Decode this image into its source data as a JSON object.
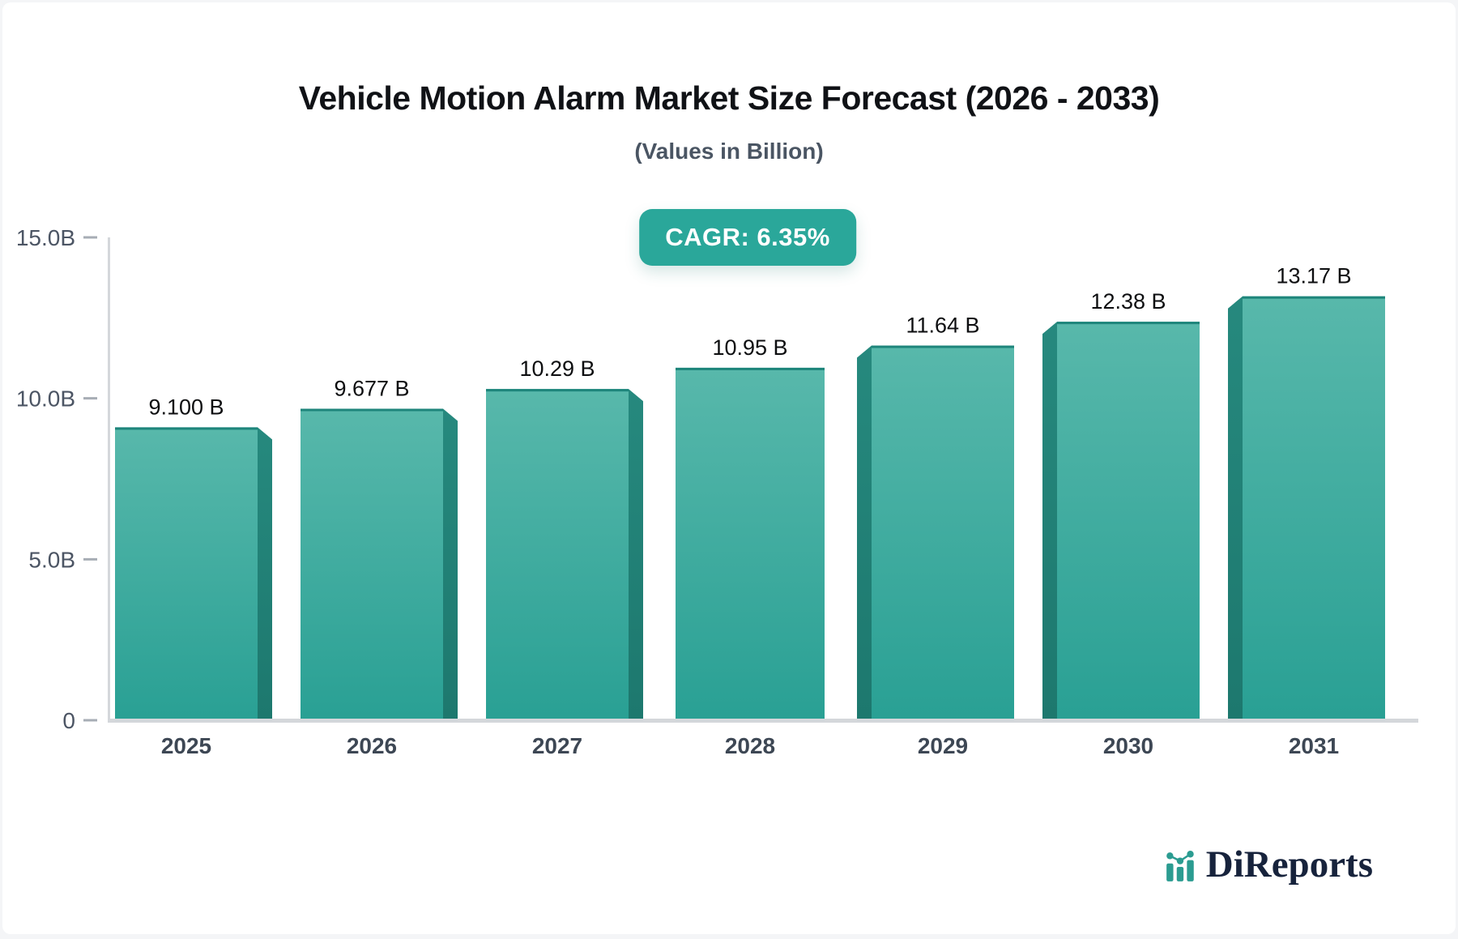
{
  "header": {
    "title": "Vehicle Motion Alarm Market Size Forecast (2026 - 2033)",
    "subtitle": "(Values in Billion)"
  },
  "badge": {
    "label": "CAGR: 6.35%",
    "background_color": "#2aa79a",
    "text_color": "#ffffff"
  },
  "footer": {
    "logo_text": "DiReports"
  },
  "chart_data": {
    "type": "bar",
    "title": "Vehicle Motion Alarm Market Size Forecast (2026 - 2033)",
    "subtitle": "(Values in Billion)",
    "annotation": "CAGR: 6.35%",
    "categories": [
      "2025",
      "2026",
      "2027",
      "2028",
      "2029",
      "2030",
      "2031"
    ],
    "values": [
      9.1,
      9.677,
      10.29,
      10.95,
      11.64,
      12.38,
      13.17
    ],
    "value_labels": [
      "9.100 B",
      "9.677 B",
      "10.29 B",
      "10.95 B",
      "11.64 B",
      "12.38 B",
      "13.17 B"
    ],
    "unit": "Billion",
    "xlabel": "",
    "ylabel": "",
    "ylim": [
      0,
      15
    ],
    "yticks": [
      {
        "value": 0,
        "label": "0"
      },
      {
        "value": 5,
        "label": "5.0B"
      },
      {
        "value": 10,
        "label": "10.0B"
      },
      {
        "value": 15,
        "label": "15.0B"
      }
    ],
    "grid": false,
    "legend": "none",
    "style": {
      "bar_face_top_color": "#58b8ab",
      "bar_face_bottom_color": "#29a094",
      "bar_top_edge_color": "#1e857b",
      "bar_side_top_color": "#26897e",
      "bar_side_bottom_color": "#1d786e",
      "effect": "pseudo-3d side panels facing chart center",
      "axis_line_color": "#d4d7db",
      "tick_dash_color": "#a7adb5",
      "ytick_text_color": "#4c5564",
      "xtick_text_color": "#3d4754",
      "value_text_color": "#0d0e10"
    }
  }
}
